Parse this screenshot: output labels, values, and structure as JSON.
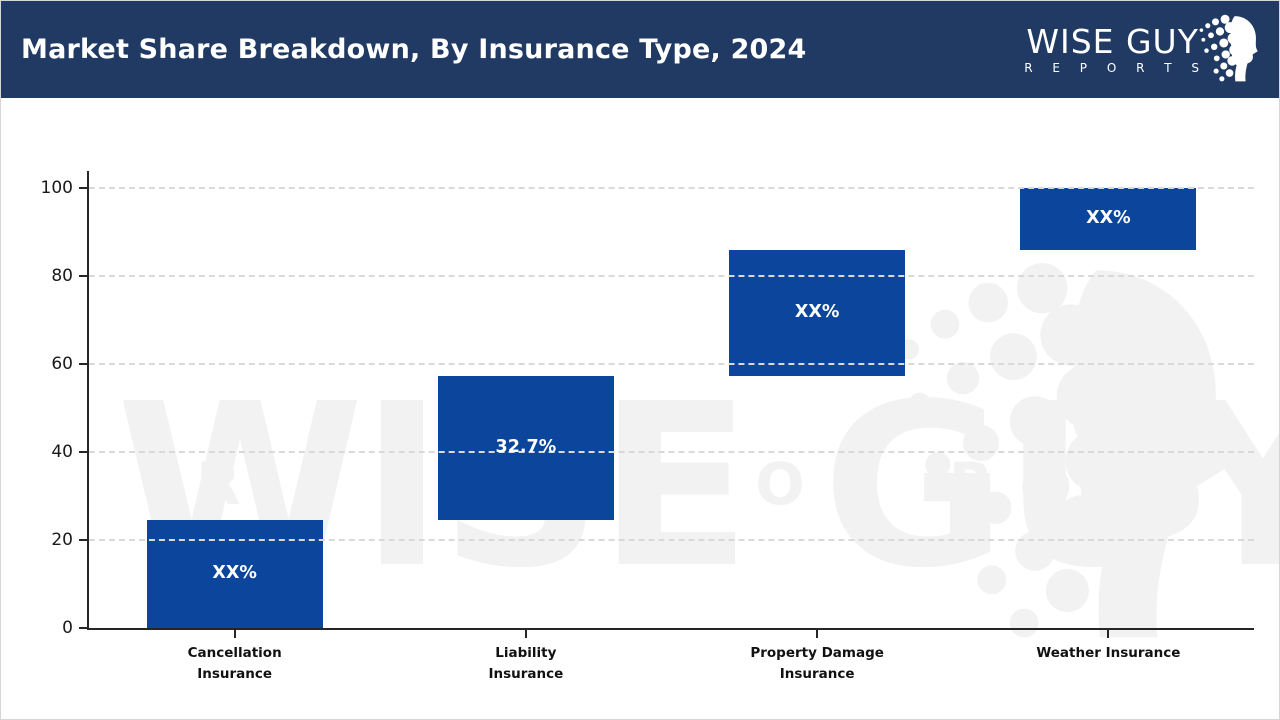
{
  "header": {
    "title": "Market Share Breakdown, By Insurance Type, 2024",
    "logo_name": "WISE GUY",
    "logo_sub": "R E P O R T S",
    "bg_color": "#213a64"
  },
  "watermark": {
    "line1": "WISE GUY",
    "line2": "R E P O R T S"
  },
  "chart_data": {
    "type": "bar",
    "subtype": "waterfall",
    "title": "Market Share Breakdown, By Insurance Type, 2024",
    "xlabel": "",
    "ylabel": "",
    "ylim": [
      0,
      105
    ],
    "yticks": [
      0,
      20,
      40,
      60,
      80,
      100
    ],
    "grid": "horizontal-dashed",
    "legend": "none",
    "bar_color": "#0b469c",
    "categories": [
      "Cancellation Insurance",
      "Liability Insurance",
      "Property Damage Insurance",
      "Weather Insurance"
    ],
    "bars": [
      {
        "category_lines": [
          "Cancellation",
          "Insurance"
        ],
        "start": 0,
        "end": 24.5,
        "height": 24.5,
        "label": "XX%"
      },
      {
        "category_lines": [
          "Liability",
          "Insurance"
        ],
        "start": 24.5,
        "end": 57.2,
        "height": 32.7,
        "label": "32.7%"
      },
      {
        "category_lines": [
          "Property Damage",
          "Insurance"
        ],
        "start": 57.2,
        "end": 85.9,
        "height": 28.7,
        "label": "XX%"
      },
      {
        "category_lines": [
          "Weather Insurance"
        ],
        "start": 85.9,
        "end": 100,
        "height": 14.1,
        "label": "XX%"
      }
    ]
  }
}
